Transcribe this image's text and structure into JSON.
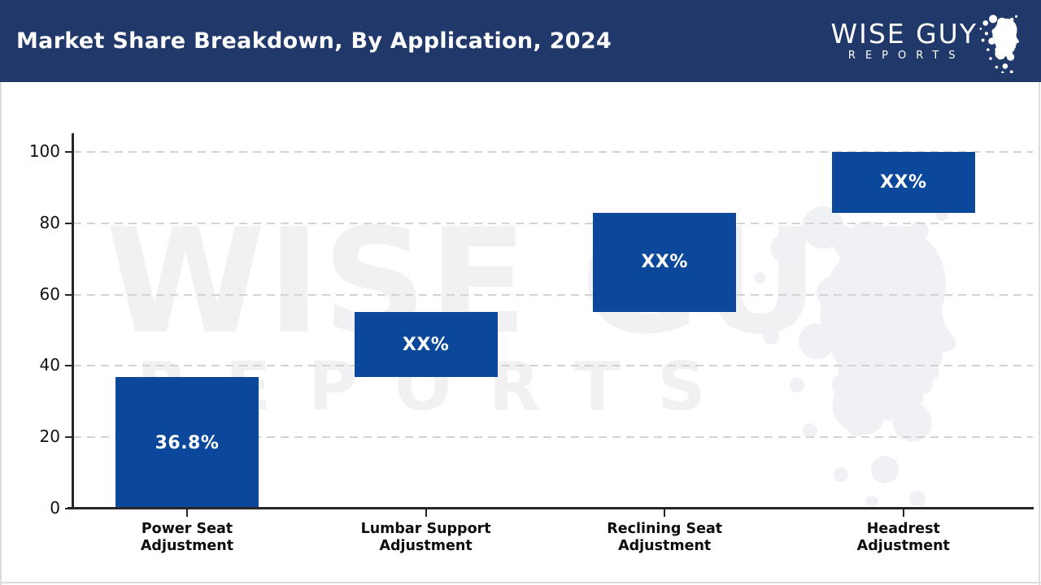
{
  "header": {
    "title": "Market Share Breakdown, By Application, 2024",
    "bg_color": "#21386b",
    "logo": {
      "name": "WISE GUY",
      "sub": "REPORTS"
    }
  },
  "watermark": {
    "line1": "WISE GUY",
    "line2": "REPORTS"
  },
  "chart_data": {
    "type": "bar",
    "variant": "waterfall-stacked-percent",
    "title": "Market Share Breakdown, By Application, 2024",
    "categories": [
      {
        "line1": "Power Seat",
        "line2": "Adjustment"
      },
      {
        "line1": "Lumbar Support",
        "line2": "Adjustment"
      },
      {
        "line1": "Reclining Seat",
        "line2": "Adjustment"
      },
      {
        "line1": "Headrest",
        "line2": "Adjustment"
      }
    ],
    "segments": [
      {
        "start": 0,
        "end": 36.8,
        "label": "36.8%"
      },
      {
        "start": 36.8,
        "end": 55.2,
        "label": "XX%"
      },
      {
        "start": 55.2,
        "end": 82.9,
        "label": "XX%"
      },
      {
        "start": 82.9,
        "end": 100,
        "label": "XX%"
      }
    ],
    "ylim": [
      0,
      100
    ],
    "yticks": [
      0,
      20,
      40,
      60,
      80,
      100
    ],
    "xlabel": "",
    "ylabel": "",
    "bar_color": "#0b489c",
    "value_label_color": "#ffffff",
    "grid": {
      "axis": "y",
      "style": "dashed",
      "color": "#d3d3d3"
    },
    "legend": "none"
  }
}
